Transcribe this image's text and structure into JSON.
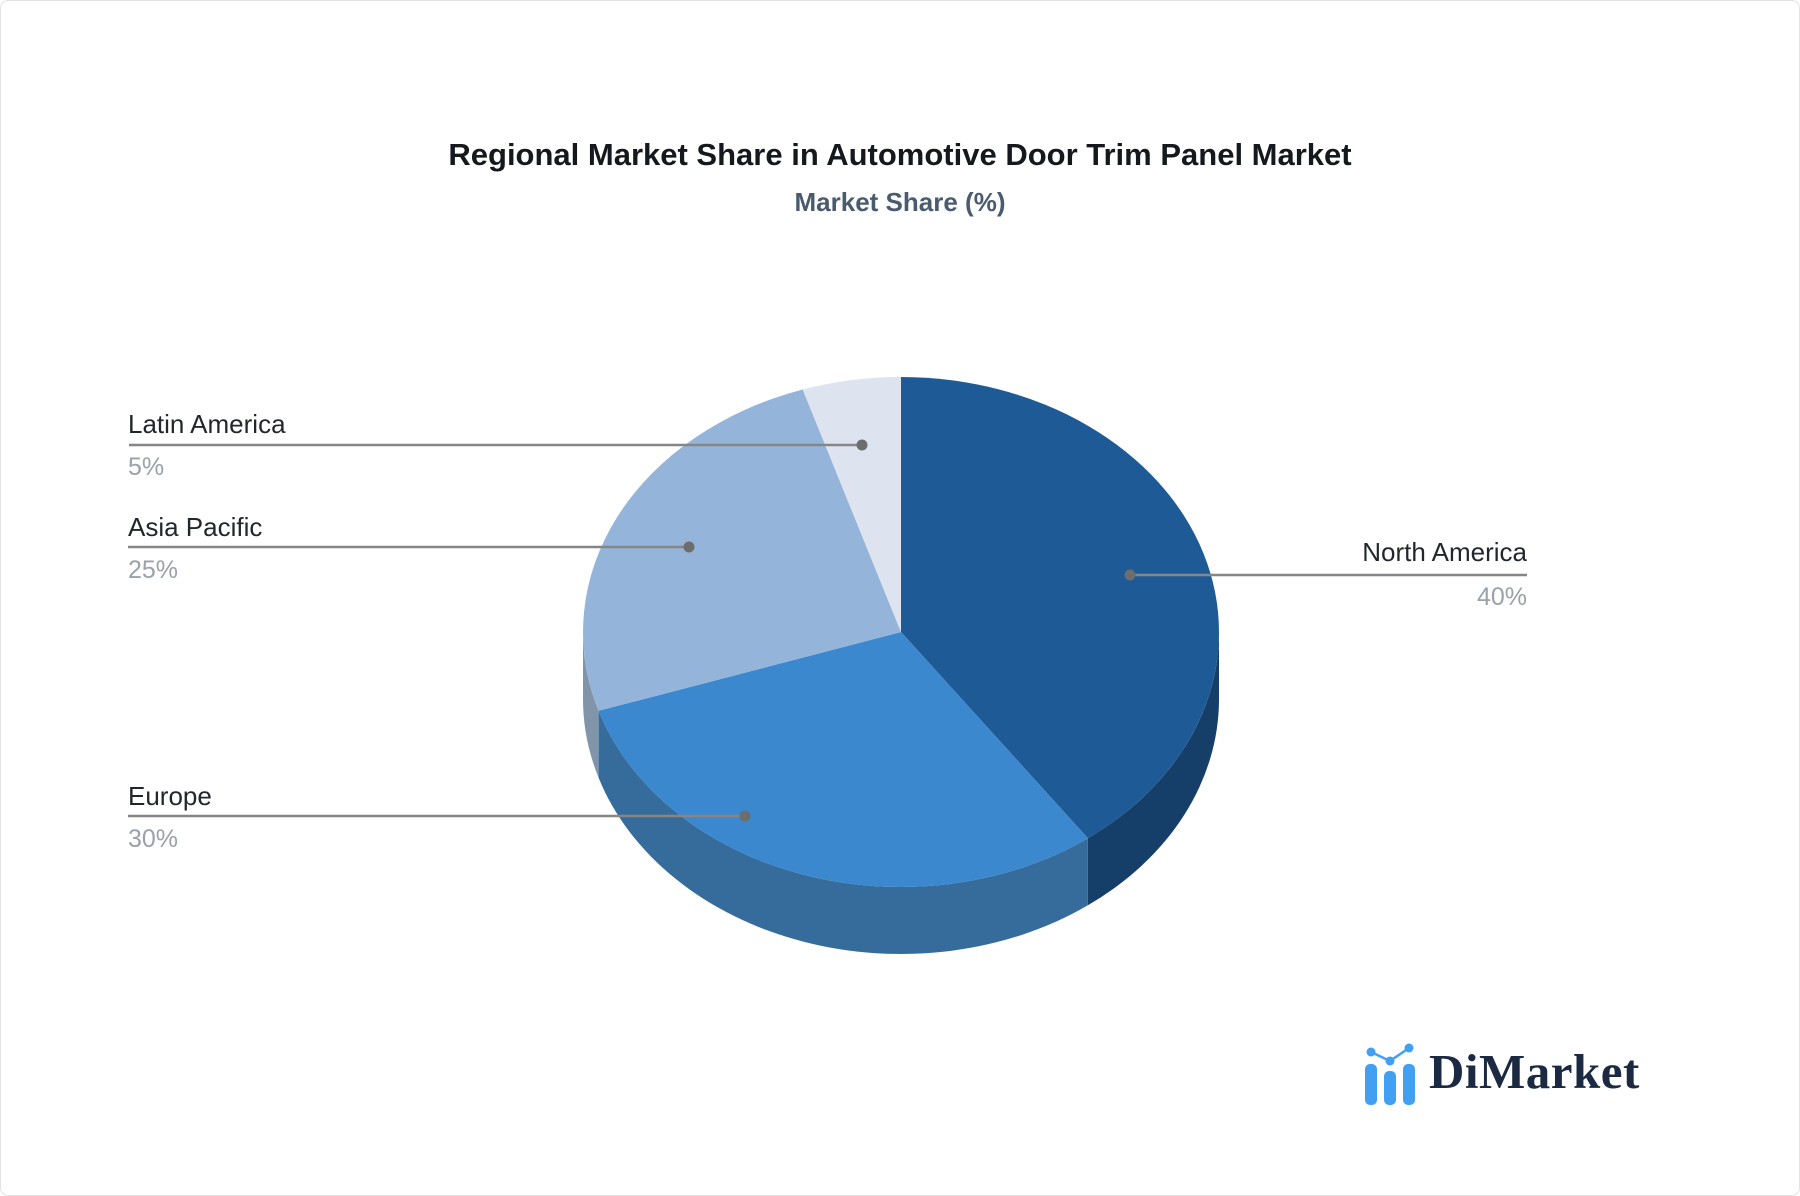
{
  "title": "Regional Market Share in Automotive Door Trim Panel Market",
  "subtitle": "Market Share (%)",
  "brand": {
    "name": "DiMarket",
    "icon": "bar-chart-logo",
    "accent_color": "#42a0f2",
    "text_color": "#1b2a42"
  },
  "chart_data": {
    "type": "pie",
    "style": "3d",
    "title": "Market Share (%)",
    "unit": "%",
    "start_angle_deg": 0,
    "direction": "clockwise",
    "legend_position": "callout-labels",
    "segments": [
      {
        "label": "North America",
        "value": 40,
        "value_label": "40%",
        "color": "#1e5b96",
        "side_color": "#153f68"
      },
      {
        "label": "Europe",
        "value": 30,
        "value_label": "30%",
        "color": "#3c88ce",
        "side_color": "#356c9c"
      },
      {
        "label": "Asia Pacific",
        "value": 25,
        "value_label": "25%",
        "color": "#94b5d9",
        "side_color": "#8095a9"
      },
      {
        "label": "Latin America",
        "value": 5,
        "value_label": "5%",
        "color": "#dde4f0",
        "side_color": "#bcc8d8"
      }
    ],
    "callout_line_color": "#868686",
    "callout_dot_color": "#6d6d6d"
  }
}
